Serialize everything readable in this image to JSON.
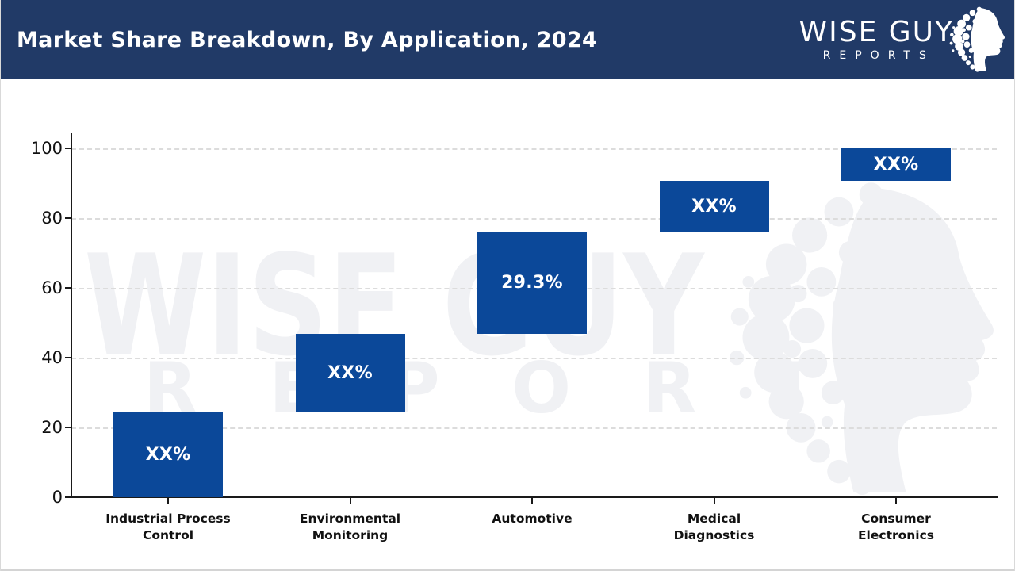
{
  "header": {
    "title": "Market Share Breakdown, By Application, 2024",
    "logo": {
      "line1": "WISE GUY",
      "line2": "REPORTS"
    }
  },
  "watermark": {
    "line1": "WISE GUY",
    "line2": "R E P O R T S"
  },
  "chart_data": {
    "type": "bar",
    "variant": "waterfall-floating-segments",
    "title": "Market Share Breakdown, By Application, 2024",
    "categories": [
      "Industrial Process Control",
      "Environmental Monitoring",
      "Automotive",
      "Medical Diagnostics",
      "Consumer Electronics"
    ],
    "category_label_lines": [
      "Industrial Process\nControl",
      "Environmental\nMonitoring",
      "Automotive",
      "Medical\nDiagnostics",
      "Consumer\nElectronics"
    ],
    "segments": [
      {
        "category": "Industrial Process Control",
        "start": 0,
        "end": 24.4,
        "value_label": "XX%"
      },
      {
        "category": "Environmental Monitoring",
        "start": 24.4,
        "end": 46.8,
        "value_label": "XX%"
      },
      {
        "category": "Automotive",
        "start": 46.8,
        "end": 76.1,
        "value_label": "29.3%"
      },
      {
        "category": "Medical Diagnostics",
        "start": 76.1,
        "end": 90.6,
        "value_label": "XX%"
      },
      {
        "category": "Consumer Electronics",
        "start": 90.6,
        "end": 100,
        "value_label": "XX%"
      }
    ],
    "ylim": [
      0,
      100
    ],
    "yticks": [
      0,
      20,
      40,
      60,
      80,
      100
    ],
    "xlabel": "",
    "ylabel": "",
    "grid": "horizontal-dashed",
    "legend": "none",
    "bar_color": "#0b4899",
    "bar_label_color": "#ffffff"
  },
  "colors": {
    "header_bg": "#213a67",
    "bar": "#0b4899",
    "grid": "#dcdcdc",
    "axis": "#1a1a1a",
    "watermark": "#f0f1f4",
    "page_bg": "#ffffff"
  }
}
